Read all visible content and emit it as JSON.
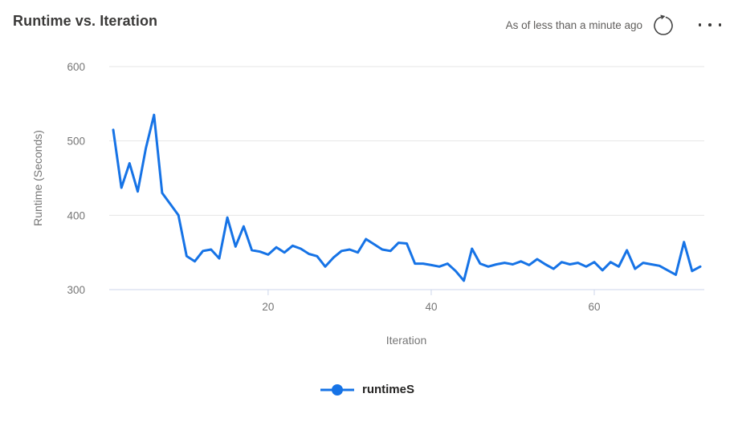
{
  "header": {
    "title": "Runtime vs. Iteration",
    "as_of": "As of less than a minute ago",
    "icons": {
      "refresh": "refresh-icon",
      "more": "more-options-icon"
    }
  },
  "legend": {
    "series_label": "runtimeS"
  },
  "colors": {
    "line": "#1673E6",
    "axis": "#CCD6EB",
    "grid": "#E6E6E6",
    "tick_text": "#767676",
    "title_text": "#3B3A39",
    "muted_text": "#605E5C",
    "legend_text": "#252423"
  },
  "chart_data": {
    "type": "line",
    "title": "Runtime vs. Iteration",
    "xlabel": "Iteration",
    "ylabel": "Runtime (Seconds)",
    "xlim": [
      1,
      73
    ],
    "ylim": [
      300,
      600
    ],
    "x_ticks": [
      20,
      40,
      60
    ],
    "y_ticks": [
      300,
      400,
      500,
      600
    ],
    "grid": true,
    "legend_position": "bottom-center",
    "series": [
      {
        "name": "runtimeS",
        "x": [
          1,
          2,
          3,
          4,
          5,
          6,
          7,
          8,
          9,
          10,
          11,
          12,
          13,
          14,
          15,
          16,
          17,
          18,
          19,
          20,
          21,
          22,
          23,
          24,
          25,
          26,
          27,
          28,
          29,
          30,
          31,
          32,
          33,
          34,
          35,
          36,
          37,
          38,
          39,
          40,
          41,
          42,
          43,
          44,
          45,
          46,
          47,
          48,
          49,
          50,
          51,
          52,
          53,
          54,
          55,
          56,
          57,
          58,
          59,
          60,
          61,
          62,
          63,
          64,
          65,
          66,
          67,
          68,
          69,
          70,
          71,
          72,
          73
        ],
        "values": [
          515,
          437,
          470,
          432,
          490,
          535,
          430,
          415,
          400,
          345,
          338,
          352,
          354,
          342,
          397,
          358,
          385,
          353,
          351,
          347,
          357,
          350,
          359,
          355,
          348,
          345,
          331,
          343,
          352,
          354,
          350,
          368,
          361,
          354,
          352,
          363,
          362,
          335,
          335,
          333,
          331,
          335,
          325,
          312,
          355,
          335,
          331,
          334,
          336,
          334,
          338,
          333,
          341,
          334,
          328,
          337,
          334,
          336,
          331,
          337,
          326,
          337,
          331,
          353,
          328,
          336,
          334,
          332,
          326,
          320,
          364,
          325,
          331
        ]
      }
    ]
  }
}
